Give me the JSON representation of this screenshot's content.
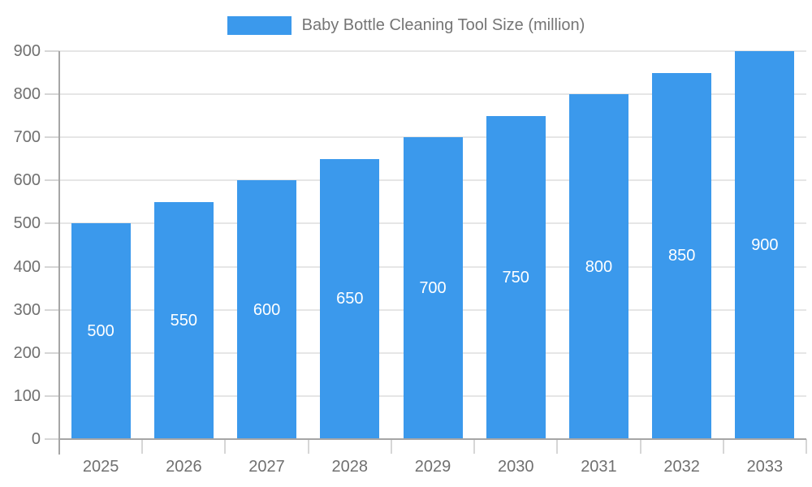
{
  "chart_data": {
    "type": "bar",
    "title": "Baby Bottle Cleaning Tool Size (million)",
    "legend_entries": [
      "Baby Bottle Cleaning Tool Size (million)"
    ],
    "legend_position": "top-center",
    "categories": [
      "2025",
      "2026",
      "2027",
      "2028",
      "2029",
      "2030",
      "2031",
      "2032",
      "2033"
    ],
    "values": [
      500,
      550,
      600,
      650,
      700,
      750,
      800,
      850,
      900
    ],
    "data_labels_shown": true,
    "xlabel": "",
    "ylabel": "",
    "ylim": [
      0,
      900
    ],
    "ytick_step": 100,
    "ytick_labels": [
      "0",
      "100",
      "200",
      "300",
      "400",
      "500",
      "600",
      "700",
      "800",
      "900"
    ],
    "grid": true,
    "colors": {
      "bar": "#3B99EC",
      "bar_label_text": "#FFFFFF",
      "axis_text": "#707070",
      "legend_text": "#757575",
      "gridline": "#E6E6E6",
      "tick": "#D6D6D6",
      "axis_line": "#A6A6A6",
      "background": "#FFFFFF"
    }
  }
}
